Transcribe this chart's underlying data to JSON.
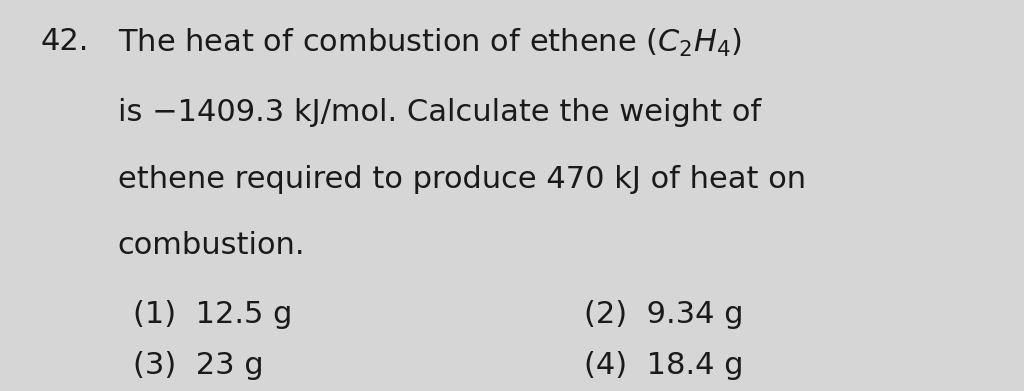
{
  "background_color": "#d6d6d6",
  "text_color": "#1a1a1a",
  "question_number": "42.",
  "line1": "The heat of combustion of ethene (C",
  "line1_sub2": "2",
  "line1_H": "H",
  "line1_sub4": "4",
  "line1_end": ")",
  "line2": "is −1409.3 kJ/mol. Calculate the weight of",
  "line3": "ethene required to produce 470 kJ of heat on",
  "line4": "combustion.",
  "opt1_label": "(1)",
  "opt1_value": "12.5 g",
  "opt2_label": "(2)",
  "opt2_value": "9.34 g",
  "opt3_label": "(3)",
  "opt3_value": "23 g",
  "opt4_label": "(4)",
  "opt4_value": "18.4 g",
  "font_size_main": 22,
  "font_size_opts": 22
}
